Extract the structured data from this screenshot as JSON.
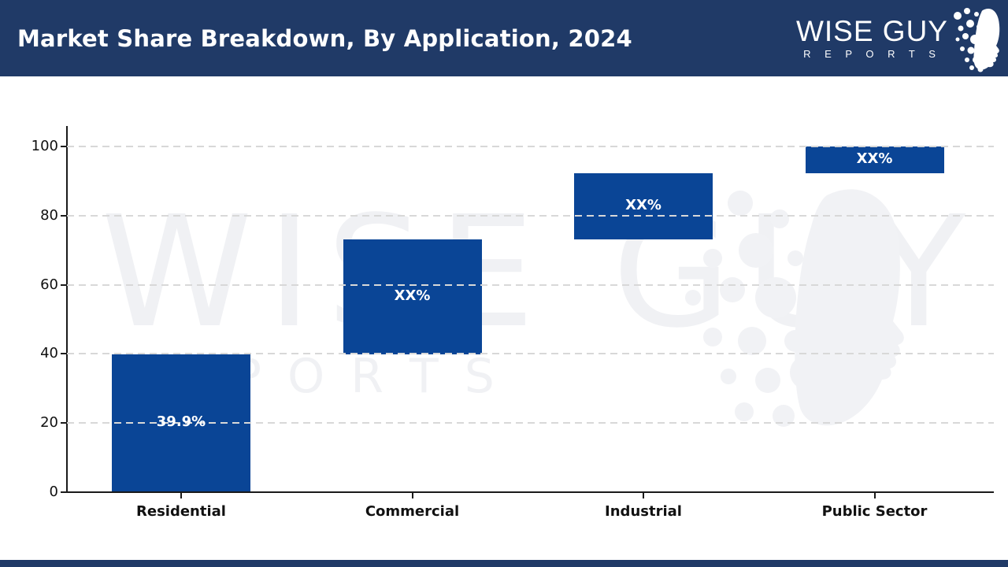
{
  "header": {
    "title": "Market Share Breakdown, By Application, 2024",
    "logo": {
      "line1": "WISE GUY",
      "line2": "R E P O R T S"
    }
  },
  "watermark": {
    "line1": "WISE GUY",
    "line2": "R E P O R T S"
  },
  "chart_data": {
    "type": "bar",
    "subtype": "waterfall",
    "title": "Market Share Breakdown, By Application, 2024",
    "categories": [
      "Residential",
      "Commercial",
      "Industrial",
      "Public Sector"
    ],
    "segments": [
      {
        "category": "Residential",
        "start": 0,
        "end": 39.9,
        "label": "39.9%"
      },
      {
        "category": "Commercial",
        "start": 39.9,
        "end": 73.2,
        "label": "XX%"
      },
      {
        "category": "Industrial",
        "start": 73.2,
        "end": 92.3,
        "label": "XX%"
      },
      {
        "category": "Public Sector",
        "start": 92.3,
        "end": 100,
        "label": "XX%"
      }
    ],
    "ylim": [
      0,
      105
    ],
    "yticks": [
      0,
      20,
      40,
      60,
      80,
      100
    ],
    "grid": "horizontal-dashed",
    "legend": "none",
    "bar_color": "#0a4596",
    "bar_label_color": "#ffffff"
  },
  "colors": {
    "header_bg": "#203a67",
    "footer_bg": "#203a67",
    "bar": "#0a4596",
    "grid": "#d8d8d8",
    "axis": "#1a1a1a",
    "watermark": "#f0f1f4"
  }
}
